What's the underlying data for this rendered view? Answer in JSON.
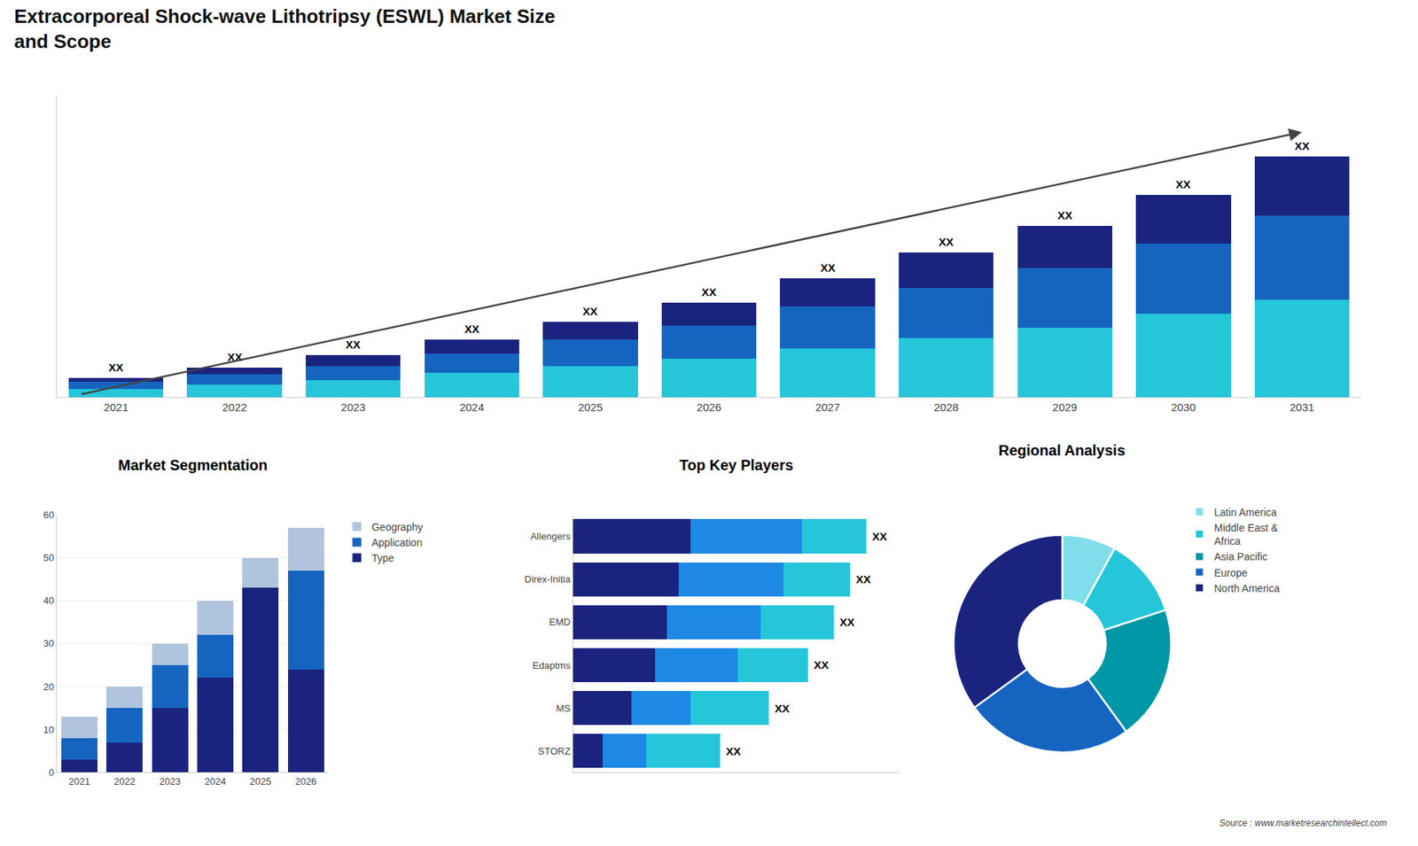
{
  "chart_data": [
    {
      "type": "bar",
      "title": "Extracorporeal Shock-wave Lithotripsy (ESWL) Market Size\nand Scope",
      "stacked": true,
      "categories": [
        "2021",
        "2022",
        "2023",
        "2024",
        "2025",
        "2026",
        "2027",
        "2028",
        "2029",
        "2030",
        "2031"
      ],
      "series": [
        {
          "color": "#26c6da",
          "values": [
            1.2,
            1.8,
            2.5,
            3.5,
            4.5,
            5.5,
            7.0,
            8.5,
            10.0,
            12.0,
            14.0
          ]
        },
        {
          "color": "#1565c0",
          "values": [
            1.0,
            1.5,
            2.0,
            2.8,
            3.8,
            4.8,
            6.0,
            7.2,
            8.5,
            10.0,
            12.0
          ]
        },
        {
          "color": "#1a237e",
          "values": [
            0.6,
            1.0,
            1.5,
            2.0,
            2.5,
            3.2,
            4.0,
            5.0,
            6.0,
            7.0,
            8.5
          ]
        }
      ],
      "data_labels": true,
      "value_labels": [
        "XX",
        "XX",
        "XX",
        "XX",
        "XX",
        "XX",
        "XX",
        "XX",
        "XX",
        "XX",
        "XX"
      ],
      "ylim": [
        0,
        43.125
      ],
      "tick_labels": "x",
      "grid": false,
      "annotations": [
        "Source : www.marketresearchintellect.com"
      ]
    },
    {
      "type": "bar",
      "title": "Market Segmentation",
      "stacked": true,
      "categories": [
        "2021",
        "2022",
        "2023",
        "2024",
        "2025",
        "2026"
      ],
      "series": [
        {
          "name": "Type",
          "color": "#1a237e",
          "values": [
            3,
            7,
            15,
            22,
            43,
            24
          ]
        },
        {
          "name": "Application",
          "color": "#1565c0",
          "values": [
            5,
            8,
            10,
            10,
            0,
            23
          ]
        },
        {
          "name": "Geography",
          "color": "#b0c4de",
          "values": [
            5,
            5,
            5,
            8,
            7,
            10
          ]
        }
      ],
      "ylim": [
        0,
        60
      ],
      "yticks": [
        0,
        10,
        20,
        30,
        40,
        50,
        60
      ],
      "grid": true,
      "legend": "right"
    },
    {
      "type": "bar",
      "title": "Top Key Players",
      "orientation": "horizontal",
      "stacked": true,
      "categories": [
        "Allengers",
        "Direx-Initia",
        "EMD",
        "Edaptms",
        "MS",
        "STORZ"
      ],
      "series": [
        {
          "color": "#1a237e",
          "values": [
            0.36,
            0.323,
            0.288,
            0.252,
            0.18,
            0.09
          ]
        },
        {
          "color": "#1e88e5",
          "values": [
            0.342,
            0.323,
            0.288,
            0.252,
            0.18,
            0.135
          ]
        },
        {
          "color": "#26c6da",
          "values": [
            0.198,
            0.204,
            0.224,
            0.216,
            0.24,
            0.225
          ]
        }
      ],
      "data_labels": true,
      "value_labels": [
        "XX",
        "XX",
        "XX",
        "XX",
        "XX",
        "XX"
      ],
      "xlim": [
        0,
        1
      ],
      "tick_labels": "y",
      "grid": false
    },
    {
      "type": "pie",
      "title": "Regional Analysis",
      "categories": [
        "Latin America",
        "Middle East &\nAfrica",
        "Asia Pacific",
        "Europe",
        "North America"
      ],
      "values": [
        8,
        12,
        20,
        25,
        35
      ],
      "colors": [
        "#80deea",
        "#26c6da",
        "#0097a7",
        "#1565c0",
        "#1a237e"
      ],
      "legend": "right"
    }
  ]
}
